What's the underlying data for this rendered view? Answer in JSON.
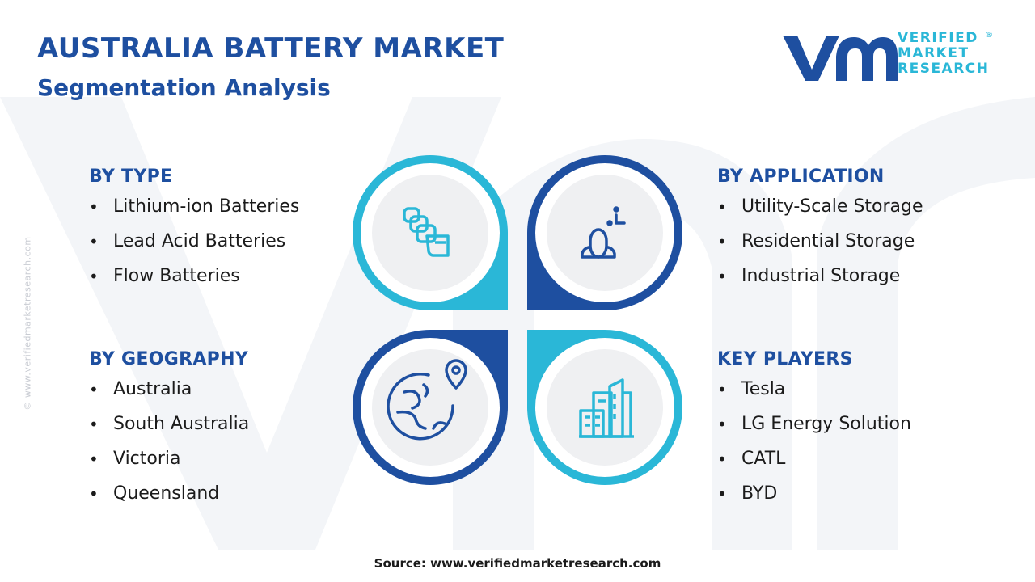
{
  "header": {
    "title": "AUSTRALIA BATTERY MARKET",
    "subtitle": "Segmentation Analysis"
  },
  "logo": {
    "line1": "VERIFIED",
    "line2": "MARKET",
    "line3": "RESEARCH",
    "registered": "®"
  },
  "side_credit": "© www.verifiedmarketresearch.com",
  "segments": {
    "type": {
      "title": "BY TYPE",
      "items": [
        "Lithium-ion Batteries",
        "Lead Acid Batteries",
        "Flow Batteries"
      ]
    },
    "application": {
      "title": "BY APPLICATION",
      "items": [
        "Utility-Scale Storage",
        "Residential Storage",
        "Industrial Storage"
      ]
    },
    "geography": {
      "title": "BY GEOGRAPHY",
      "items": [
        "Australia",
        "South Australia",
        "Victoria",
        "Queensland"
      ]
    },
    "key_players": {
      "title": "KEY PLAYERS",
      "items": [
        "Tesla",
        "LG Energy Solution",
        "CATL",
        "BYD"
      ]
    }
  },
  "colors": {
    "navy": "#1e4fa0",
    "cyan": "#2ab7d7",
    "circle_fill": "#eff0f2"
  },
  "icons": {
    "type": "battery-cells-icon",
    "application": "user-storage-icon",
    "geography": "globe-location-icon",
    "key_players": "city-buildings-icon"
  },
  "footer": {
    "source": "Source: www.verifiedmarketresearch.com"
  }
}
